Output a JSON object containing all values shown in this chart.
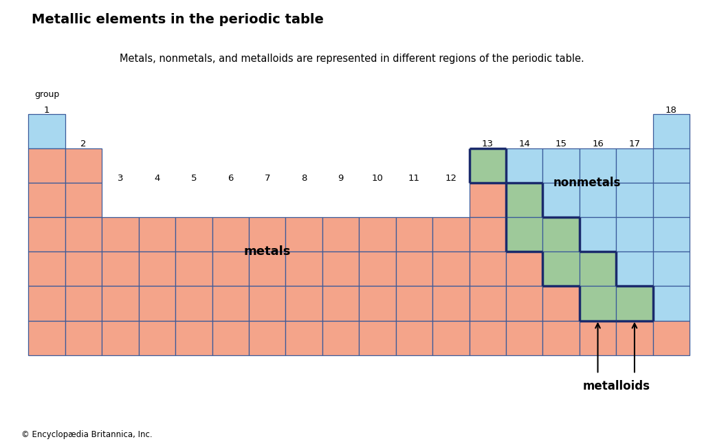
{
  "title": "Metallic elements in the periodic table",
  "subtitle": "Metals, nonmetals, and metalloids are represented in different regions of the periodic table.",
  "copyright": "© Encyclopædia Britannica, Inc.",
  "color_metal": "#F4A48A",
  "color_nonmetal": "#A8D8F0",
  "color_metalloid": "#9EC99A",
  "color_border_normal": "#3A5A9A",
  "color_border_thick": "#1A2A6C",
  "background": "#FFFFFF",
  "label_metals": "metals",
  "label_nonmetals": "nonmetals",
  "label_metalloids": "metalloids"
}
